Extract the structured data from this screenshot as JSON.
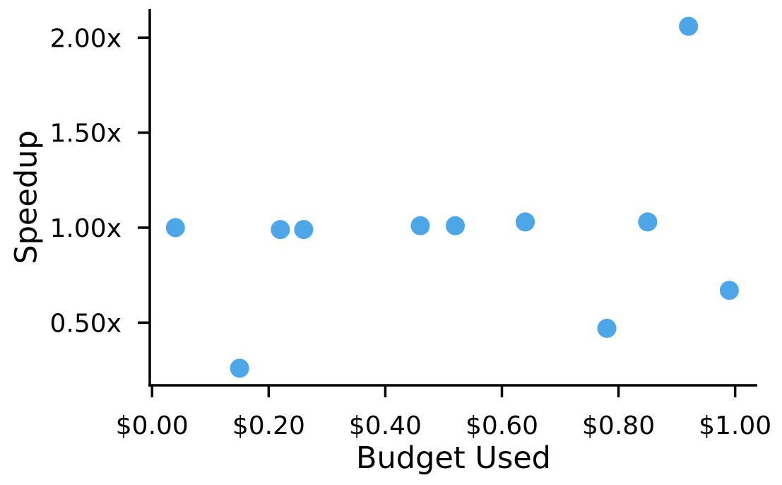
{
  "chart_data": {
    "type": "scatter",
    "title": "",
    "xlabel": "Budget Used",
    "ylabel": "Speedup",
    "x_tick_values": [
      0.0,
      0.2,
      0.4,
      0.6,
      0.8,
      1.0
    ],
    "x_tick_labels": [
      "$0.00",
      "$0.20",
      "$0.40",
      "$0.60",
      "$0.80",
      "$1.00"
    ],
    "y_tick_values": [
      0.5,
      1.0,
      1.5,
      2.0
    ],
    "y_tick_labels": [
      "0.50x",
      "1.00x",
      "1.50x",
      "2.00x"
    ],
    "xlim": [
      -0.004,
      1.038
    ],
    "ylim": [
      0.17,
      2.15
    ],
    "grid": false,
    "legend": null,
    "marker_color": "#4DA6E8",
    "marker_radius_px": 13.5,
    "axis_color": "#000000",
    "points": [
      {
        "x": 0.04,
        "y": 1.0
      },
      {
        "x": 0.15,
        "y": 0.26
      },
      {
        "x": 0.22,
        "y": 0.99
      },
      {
        "x": 0.26,
        "y": 0.99
      },
      {
        "x": 0.46,
        "y": 1.01
      },
      {
        "x": 0.52,
        "y": 1.01
      },
      {
        "x": 0.64,
        "y": 1.03
      },
      {
        "x": 0.78,
        "y": 0.47
      },
      {
        "x": 0.85,
        "y": 1.03
      },
      {
        "x": 0.92,
        "y": 2.06
      },
      {
        "x": 0.99,
        "y": 0.67
      }
    ]
  }
}
